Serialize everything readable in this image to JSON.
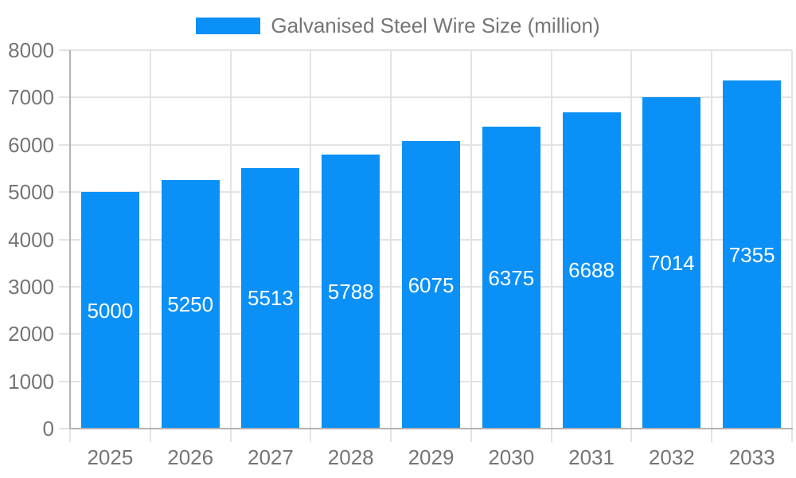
{
  "chart_data": {
    "type": "bar",
    "title": "Galvanised Steel Wire Size (million)",
    "legend_position": "top",
    "categories": [
      "2025",
      "2026",
      "2027",
      "2028",
      "2029",
      "2030",
      "2031",
      "2032",
      "2033"
    ],
    "values": [
      5000,
      5250,
      5513,
      5788,
      6075,
      6375,
      6688,
      7014,
      7355
    ],
    "value_labels": [
      "5000",
      "5250",
      "5513",
      "5788",
      "6075",
      "6375",
      "6688",
      "7014",
      "7355"
    ],
    "xlabel": "",
    "ylabel": "",
    "ylim": [
      0,
      8000
    ],
    "ytick_labels": [
      "0",
      "1000",
      "2000",
      "3000",
      "4000",
      "5000",
      "6000",
      "7000",
      "8000"
    ],
    "grid": "on",
    "colors": {
      "bar": "#0a90f7",
      "bar_label": "#ffffff",
      "axis_text": "#757575",
      "grid": "#e3e3e3",
      "axis_line": "#b3b3b3",
      "background": "#ffffff"
    }
  }
}
